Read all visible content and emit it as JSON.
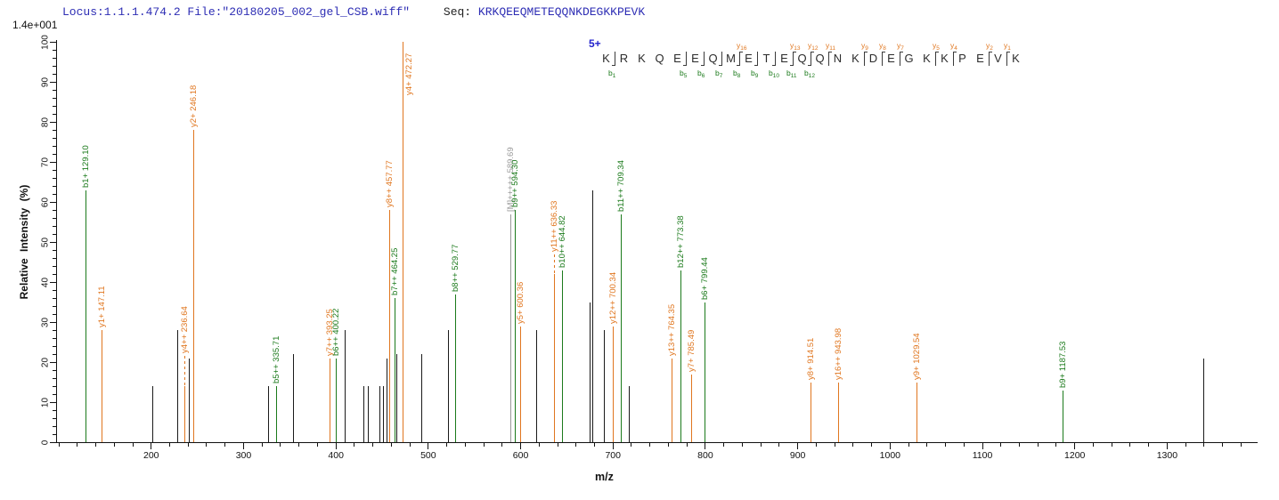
{
  "header": {
    "locus_file": "Locus:1.1.1.474.2 File:\"20180205_002_gel_CSB.wiff\"",
    "seq_label": "Seq:",
    "seq_value": "KRKQEEQMETEQQNKDEGKKPEVK"
  },
  "peptide": {
    "charge": "5+",
    "residues": [
      "K",
      "R",
      "K",
      "Q",
      "E",
      "E",
      "Q",
      "M",
      "E",
      "T",
      "E",
      "Q",
      "Q",
      "N",
      "K",
      "D",
      "E",
      "G",
      "K",
      "K",
      "P",
      "E",
      "V",
      "K"
    ],
    "cuts": [
      {
        "after": 1,
        "b": 1
      },
      {
        "after": 5,
        "b": 5
      },
      {
        "after": 6,
        "b": 6
      },
      {
        "after": 7,
        "b": 7
      },
      {
        "after": 8,
        "b": 8,
        "y": 16
      },
      {
        "after": 9,
        "b": 9
      },
      {
        "after": 10,
        "b": 10
      },
      {
        "after": 11,
        "b": 11,
        "y": 13
      },
      {
        "after": 12,
        "b": 12,
        "y": 12
      },
      {
        "after": 13,
        "y": 11
      },
      {
        "after": 15,
        "y": 9
      },
      {
        "after": 16,
        "y": 8
      },
      {
        "after": 17,
        "y": 7
      },
      {
        "after": 19,
        "y": 5
      },
      {
        "after": 20,
        "y": 4
      },
      {
        "after": 22,
        "y": 2
      },
      {
        "after": 23,
        "y": 1
      }
    ]
  },
  "chart_data": {
    "type": "bar",
    "subtype": "peptide-fragmentation-ms2-spectrum",
    "title": "",
    "xlabel": "m/z",
    "ylabel": "Relative Intensity (%)",
    "scale_note": "1.4e+001",
    "xlim": [
      98,
      1397
    ],
    "ylim": [
      0,
      100
    ],
    "x_major_ticks": [
      200,
      300,
      400,
      500,
      600,
      700,
      800,
      900,
      1000,
      1100,
      1200,
      1300
    ],
    "x_minor_step": 20,
    "y_major_step": 10,
    "y_minor_step": 2,
    "grid": "off",
    "colors": {
      "b": "#1b7a1b",
      "y": "#e0761f",
      "M": "#999999",
      "x": "#1a1a1a",
      "axis": "#111111",
      "header_blue": "#2d2db4",
      "charge_blue": "#2222cc"
    },
    "peaks": [
      {
        "mz": 129.1,
        "intensity": 63,
        "ion": "b",
        "label": "b1+ 129.10"
      },
      {
        "mz": 147.11,
        "intensity": 28,
        "ion": "y",
        "label": "y1+ 147.11"
      },
      {
        "mz": 202,
        "intensity": 14,
        "ion": "x"
      },
      {
        "mz": 229,
        "intensity": 28,
        "ion": "x"
      },
      {
        "mz": 236.64,
        "intensity": 14,
        "ion": "y",
        "label": "y4++ 236.64",
        "dash_to": 21.5
      },
      {
        "mz": 241,
        "intensity": 21,
        "ion": "x"
      },
      {
        "mz": 246.18,
        "intensity": 78,
        "ion": "y",
        "label": "y2+ 246.18"
      },
      {
        "mz": 327,
        "intensity": 14,
        "ion": "x"
      },
      {
        "mz": 335.71,
        "intensity": 14,
        "ion": "b",
        "label": "b5++ 335.71"
      },
      {
        "mz": 354,
        "intensity": 22,
        "ion": "x"
      },
      {
        "mz": 393.25,
        "intensity": 21,
        "ion": "y",
        "label": "y7++ 393.25"
      },
      {
        "mz": 400.22,
        "intensity": 21,
        "ion": "b",
        "label": "b6++ 400.22"
      },
      {
        "mz": 410,
        "intensity": 28,
        "ion": "x"
      },
      {
        "mz": 430,
        "intensity": 14,
        "ion": "x"
      },
      {
        "mz": 435,
        "intensity": 14,
        "ion": "x"
      },
      {
        "mz": 448,
        "intensity": 14,
        "ion": "x"
      },
      {
        "mz": 451,
        "intensity": 14,
        "ion": "x"
      },
      {
        "mz": 455,
        "intensity": 21,
        "ion": "x"
      },
      {
        "mz": 457.77,
        "intensity": 58,
        "ion": "y",
        "label": "y8++ 457.77"
      },
      {
        "mz": 464.25,
        "intensity": 36,
        "ion": "b",
        "label": "b7++ 464.25"
      },
      {
        "mz": 466,
        "intensity": 22,
        "ion": "x"
      },
      {
        "mz": 472.27,
        "intensity": 100,
        "ion": "y",
        "label": "y4+ 472.27"
      },
      {
        "mz": 493,
        "intensity": 22,
        "ion": "x"
      },
      {
        "mz": 522,
        "intensity": 28,
        "ion": "x"
      },
      {
        "mz": 529.77,
        "intensity": 37,
        "ion": "b",
        "label": "b8++ 529.77"
      },
      {
        "mz": 589.69,
        "intensity": 57,
        "ion": "M",
        "label": "[M]+++++ 589.69"
      },
      {
        "mz": 594.3,
        "intensity": 58,
        "ion": "b",
        "label": "b9++ 594.30"
      },
      {
        "mz": 600.36,
        "intensity": 29,
        "ion": "y",
        "label": "y5+ 600.36"
      },
      {
        "mz": 617,
        "intensity": 28,
        "ion": "x"
      },
      {
        "mz": 636.33,
        "intensity": 42,
        "ion": "y",
        "label": "y11++ 636.33",
        "dash_to": 47
      },
      {
        "mz": 644.82,
        "intensity": 43,
        "ion": "b",
        "label": "b10++ 644.82"
      },
      {
        "mz": 675,
        "intensity": 35,
        "ion": "x"
      },
      {
        "mz": 678,
        "intensity": 63,
        "ion": "x"
      },
      {
        "mz": 691,
        "intensity": 28,
        "ion": "x"
      },
      {
        "mz": 700.34,
        "intensity": 29,
        "ion": "y",
        "label": "y12++ 700.34"
      },
      {
        "mz": 709.34,
        "intensity": 57,
        "ion": "b",
        "label": "b11++ 709.34"
      },
      {
        "mz": 718,
        "intensity": 14,
        "ion": "x"
      },
      {
        "mz": 764.35,
        "intensity": 21,
        "ion": "y",
        "label": "y13++ 764.35"
      },
      {
        "mz": 773.38,
        "intensity": 43,
        "ion": "b",
        "label": "b12++ 773.38"
      },
      {
        "mz": 785.49,
        "intensity": 17,
        "ion": "y",
        "label": "y7+ 785.49"
      },
      {
        "mz": 799.44,
        "intensity": 35,
        "ion": "b",
        "label": "b6+ 799.44"
      },
      {
        "mz": 914.51,
        "intensity": 15,
        "ion": "y",
        "label": "y8+ 914.51"
      },
      {
        "mz": 943.98,
        "intensity": 15,
        "ion": "y",
        "label": "y16++ 943.98"
      },
      {
        "mz": 1029.54,
        "intensity": 15,
        "ion": "y",
        "label": "y9+ 1029.54"
      },
      {
        "mz": 1187.53,
        "intensity": 13,
        "ion": "b",
        "label": "b9+ 1187.53"
      },
      {
        "mz": 1340,
        "intensity": 21,
        "ion": "x"
      }
    ]
  }
}
